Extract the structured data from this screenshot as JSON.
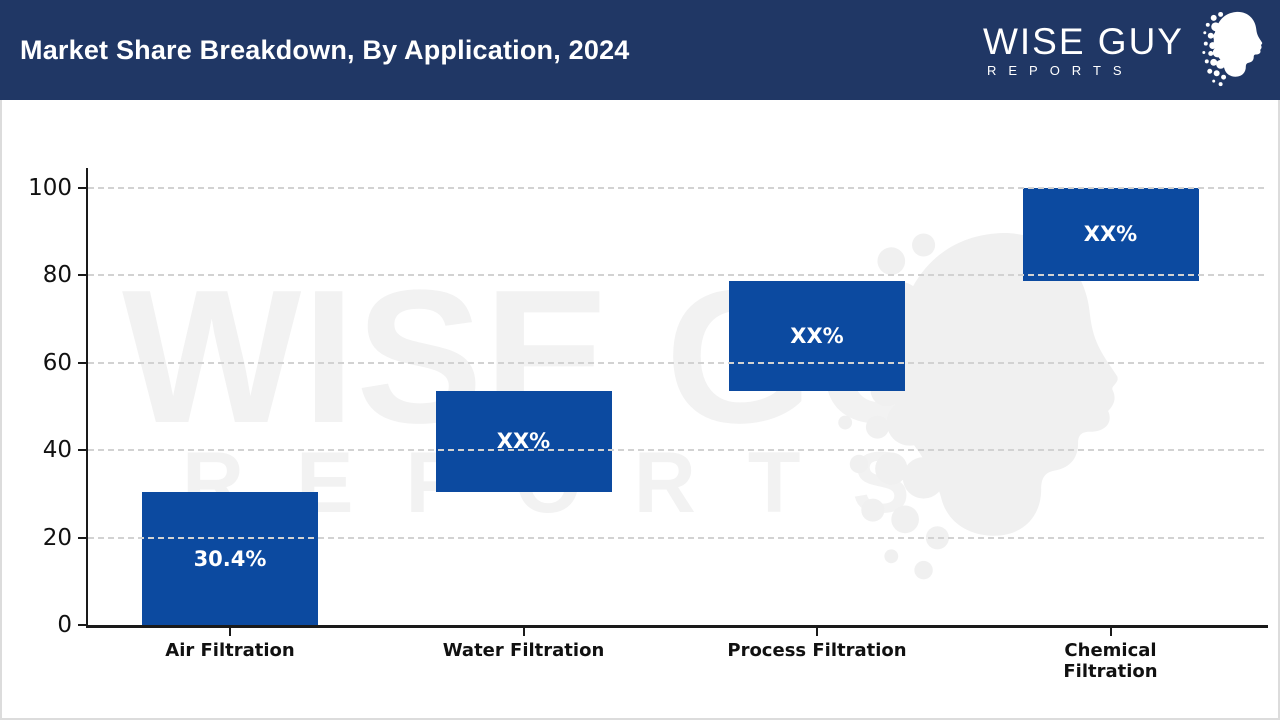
{
  "header": {
    "title": "Market Share Breakdown, By Application, 2024",
    "brand": {
      "line1": "WISE GUY",
      "line2": "REPORTS"
    }
  },
  "watermark": {
    "line1": "WISE GUY",
    "line2": "REPORTS"
  },
  "colors": {
    "header_bg": "#203765",
    "bar": "#0c4aa0",
    "grid": "#d2d2d2",
    "axis": "#1a1a1a",
    "watermark": "#f2f2f2",
    "bar_label": "#ffffff"
  },
  "chart_data": {
    "type": "bar",
    "subtype": "waterfall",
    "title": "Market Share Breakdown, By Application, 2024",
    "categories": [
      "Air Filtration",
      "Water Filtration",
      "Process Filtration",
      "Chemical\nFiltration"
    ],
    "segments": [
      {
        "start": 0,
        "end": 30.4,
        "label": "30.4%"
      },
      {
        "start": 30.4,
        "end": 53.6,
        "label": "XX%"
      },
      {
        "start": 53.6,
        "end": 78.6,
        "label": "XX%"
      },
      {
        "start": 78.6,
        "end": 100,
        "label": "XX%"
      }
    ],
    "yticks": [
      0,
      20,
      40,
      60,
      80,
      100
    ],
    "ylim": [
      0,
      104
    ],
    "xlabel": "",
    "ylabel": "",
    "grid": "dashed-horizontal",
    "legend": "none"
  }
}
